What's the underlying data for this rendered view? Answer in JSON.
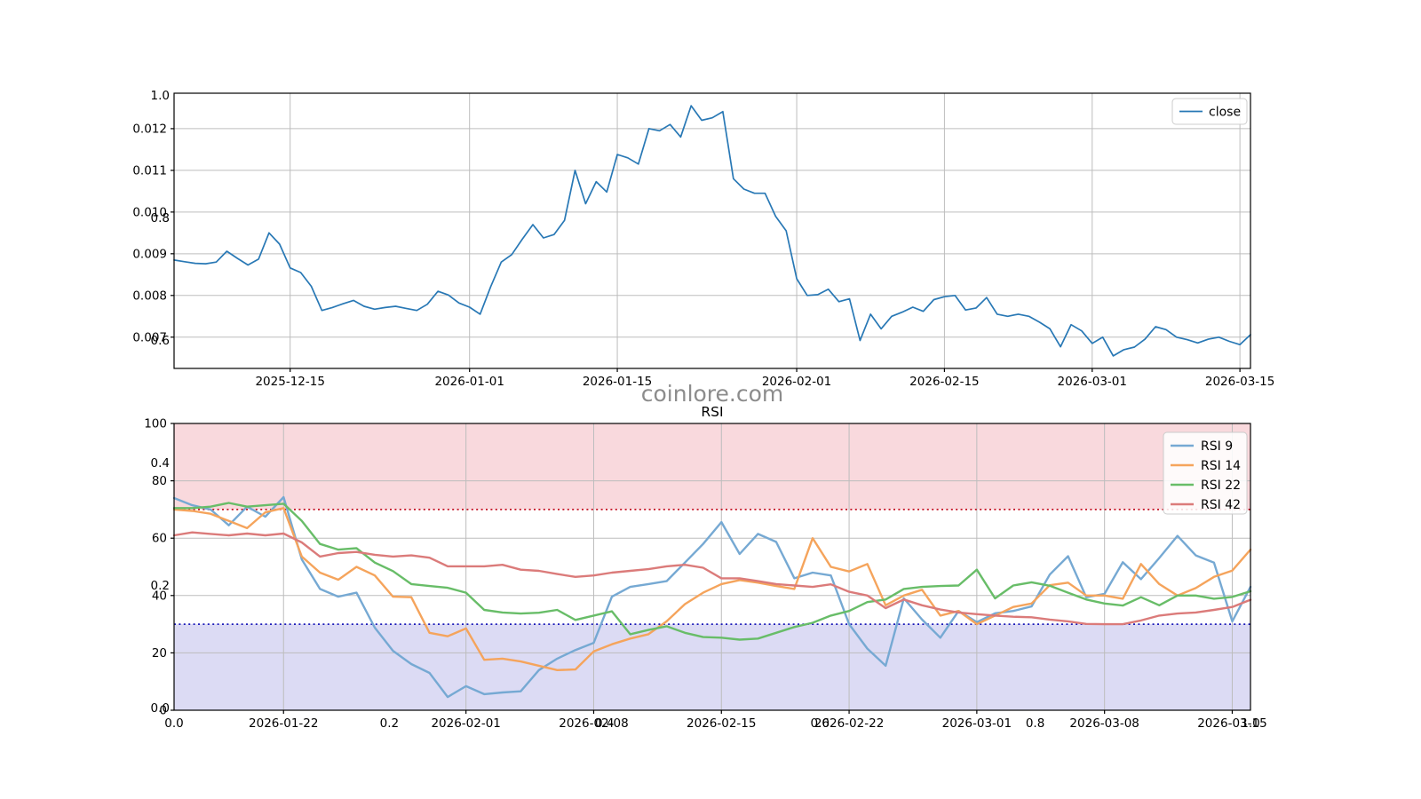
{
  "watermark": "coinlore.com",
  "overlay_axis": {
    "x_labels": [
      "0.0",
      "0.2",
      "0.4",
      "0.6",
      "0.8",
      "1.0"
    ],
    "y_labels": [
      "1.0",
      "0.8",
      "0.6",
      "0.4",
      "0.2",
      "0.0"
    ]
  },
  "chart_data": [
    {
      "type": "line",
      "title": "",
      "grid": true,
      "legend_position": "upper right",
      "x_start_date": "2025-12-04",
      "x_end_date": "2026-03-16",
      "x_tick_labels": [
        "2025-12-15",
        "2026-01-01",
        "2026-01-15",
        "2026-02-01",
        "2026-02-15",
        "2026-03-01",
        "2026-03-15"
      ],
      "x_tick_indices": [
        11,
        28,
        42,
        59,
        73,
        87,
        101
      ],
      "y_tick_labels": [
        "0.012",
        "0.011",
        "0.010",
        "0.009",
        "0.008",
        "0.007"
      ],
      "y_tick_values": [
        0.012,
        0.011,
        0.01,
        0.009,
        0.008,
        0.007
      ],
      "ylim": [
        0.00625,
        0.01285
      ],
      "series": [
        {
          "name": "close",
          "color": "#2878b5",
          "width": 1.7,
          "values": [
            0.00885,
            0.00881,
            0.00877,
            0.00876,
            0.0088,
            0.00906,
            0.00889,
            0.00873,
            0.00887,
            0.0095,
            0.00923,
            0.00866,
            0.00855,
            0.00822,
            0.00764,
            0.00771,
            0.0078,
            0.00788,
            0.00774,
            0.00767,
            0.00771,
            0.00774,
            0.00769,
            0.00764,
            0.00779,
            0.0081,
            0.00801,
            0.00782,
            0.00772,
            0.00755,
            0.00821,
            0.0088,
            0.00898,
            0.00935,
            0.0097,
            0.00938,
            0.00946,
            0.0098,
            0.011,
            0.0102,
            0.01073,
            0.01048,
            0.01138,
            0.0113,
            0.01115,
            0.012,
            0.01195,
            0.0121,
            0.0118,
            0.01255,
            0.0122,
            0.01226,
            0.01241,
            0.0108,
            0.01055,
            0.01045,
            0.01045,
            0.0099,
            0.00955,
            0.0084,
            0.008,
            0.00802,
            0.00815,
            0.00785,
            0.00792,
            0.00692,
            0.00755,
            0.0072,
            0.0075,
            0.0076,
            0.00772,
            0.00762,
            0.0079,
            0.00797,
            0.008,
            0.00765,
            0.0077,
            0.00795,
            0.00755,
            0.0075,
            0.00755,
            0.0075,
            0.00736,
            0.0072,
            0.00677,
            0.0073,
            0.00715,
            0.00685,
            0.007,
            0.00655,
            0.0067,
            0.00676,
            0.00695,
            0.00725,
            0.00718,
            0.007,
            0.00694,
            0.00686,
            0.00695,
            0.007,
            0.0069,
            0.00682,
            0.00706
          ]
        }
      ]
    },
    {
      "type": "line",
      "title": "RSI",
      "grid": true,
      "legend_position": "upper right",
      "x_start_date": "2026-01-16",
      "x_end_date": "2026-03-16",
      "x_tick_labels": [
        "2026-01-22",
        "2026-02-01",
        "2026-02-08",
        "2026-02-15",
        "2026-02-22",
        "2026-03-01",
        "2026-03-08",
        "2026-03-15"
      ],
      "x_tick_indices": [
        6,
        16,
        23,
        30,
        37,
        44,
        51,
        58
      ],
      "y_tick_labels": [
        "100",
        "80",
        "60",
        "40",
        "20",
        "0"
      ],
      "y_tick_values": [
        100,
        80,
        60,
        40,
        20,
        0
      ],
      "ylim": [
        0,
        100
      ],
      "bands": [
        {
          "from": 70,
          "to": 100,
          "color": "#f9d9dd",
          "name": "overbought-band"
        },
        {
          "from": 0,
          "to": 30,
          "color": "#dcdbf4",
          "name": "oversold-band"
        }
      ],
      "ref_lines": [
        {
          "value": 70,
          "color": "#c41224",
          "style": "dotted",
          "name": "overbought-level"
        },
        {
          "value": 30,
          "color": "#1a1ab8",
          "style": "dotted",
          "name": "oversold-level"
        }
      ],
      "series": [
        {
          "name": "RSI 9",
          "color": "#76a9d3",
          "width": 2.4,
          "values": [
            74,
            71.5,
            70,
            64.5,
            71,
            67.5,
            74.3,
            52.6,
            42.3,
            39.6,
            41,
            28.8,
            20.7,
            16.1,
            13,
            4.6,
            8.4,
            5.6,
            6.2,
            6.6,
            14,
            18,
            21,
            23.5,
            39.6,
            43,
            44,
            45,
            51.5,
            58,
            65.6,
            54.5,
            61.5,
            58.7,
            46,
            48,
            47,
            30,
            21.5,
            15.5,
            39,
            31.6,
            25.3,
            34.6,
            30.7,
            33.8,
            34.6,
            36.2,
            47.3,
            53.7,
            39.4,
            40.6,
            51.6,
            45.7,
            53.1,
            60.8,
            54,
            51.5,
            31,
            43
          ]
        },
        {
          "name": "RSI 14",
          "color": "#f5a45c",
          "width": 2.4,
          "values": [
            70,
            69.5,
            68.5,
            66,
            63.5,
            69,
            70.5,
            53.6,
            48,
            45.5,
            50,
            47,
            39.6,
            39.4,
            27,
            25.8,
            28.5,
            17.6,
            18,
            17,
            15.5,
            14,
            14.2,
            20.5,
            23,
            25,
            26.5,
            31,
            37,
            41,
            44,
            45.4,
            44.5,
            43.3,
            42.3,
            60,
            50,
            48.4,
            51,
            36.6,
            40,
            42,
            33,
            34.6,
            30,
            33,
            36,
            37.2,
            43.6,
            44.5,
            40,
            40,
            38.9,
            51,
            44,
            40,
            42.6,
            46.5,
            48.7,
            56
          ]
        },
        {
          "name": "RSI 22",
          "color": "#68bd68",
          "width": 2.4,
          "values": [
            70.5,
            70.5,
            71,
            72.3,
            71,
            71.5,
            72,
            66,
            58,
            56,
            56.5,
            51.5,
            48.5,
            44,
            43.3,
            42.7,
            41,
            35,
            34.1,
            33.7,
            34,
            35,
            31.5,
            33,
            34.5,
            26.5,
            28,
            29.3,
            27,
            25.5,
            25.3,
            24.6,
            25,
            27,
            29,
            30.5,
            33,
            34.6,
            37.7,
            38.6,
            42.3,
            43,
            43.3,
            43.5,
            49,
            39,
            43.5,
            44.6,
            43.4,
            41,
            38.6,
            37.2,
            36.5,
            39.4,
            36.6,
            40,
            40,
            38.9,
            39.5,
            41.5
          ]
        },
        {
          "name": "RSI 42",
          "color": "#db7b7a",
          "width": 2.4,
          "values": [
            61,
            62,
            61.5,
            61,
            61.6,
            61,
            61.6,
            58.5,
            53.6,
            54.8,
            55.2,
            54.2,
            53.6,
            54,
            53.2,
            50.2,
            50.2,
            50.2,
            50.7,
            49,
            48.6,
            47.5,
            46.5,
            47,
            48,
            48.6,
            49.2,
            50.2,
            50.7,
            49.7,
            46,
            46,
            45,
            44,
            43.5,
            43,
            43.9,
            41.3,
            40,
            35.6,
            38.6,
            36.6,
            35.1,
            34.1,
            33.5,
            33,
            32.6,
            32.4,
            31.6,
            31,
            30.1,
            30,
            30,
            31.3,
            33,
            33.7,
            34.1,
            35,
            36,
            38.5
          ]
        }
      ]
    }
  ],
  "style": {
    "grid_color": "#bdbdbd",
    "spine_color": "#000000",
    "legend_border": "#cccccc",
    "legend_bg": "#ffffff"
  }
}
